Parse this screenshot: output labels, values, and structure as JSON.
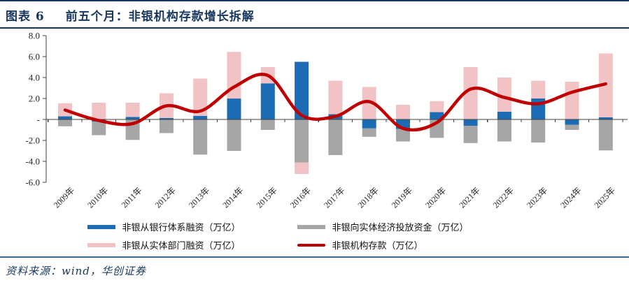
{
  "page": {
    "title_label": "图表 6",
    "title": "前五个月：非银机构存款增长拆解",
    "source": "资料来源：wind，华创证券"
  },
  "colors": {
    "title_navy": "#17375e",
    "rule_blue": "#2a6db5",
    "axis_text": "#262626",
    "axis_line": "#404040"
  },
  "chart_data": {
    "type": "bar",
    "subtype": "stacked-bar-with-smoothed-line",
    "title": "前五个月：非银机构存款增长拆解",
    "categories": [
      "2009年",
      "2010年",
      "2011年",
      "2012年",
      "2013年",
      "2014年",
      "2015年",
      "2016年",
      "2017年",
      "2018年",
      "2019年",
      "2020年",
      "2021年",
      "2022年",
      "2023年",
      "2024年",
      "2025年"
    ],
    "ylim": [
      -6.0,
      8.0
    ],
    "y_tick_values": [
      8,
      6,
      4,
      2,
      0,
      -2,
      -4,
      -6
    ],
    "y_tick_labels": [
      "8.0",
      "6.0",
      "4.0",
      "2.0",
      "-",
      "-2.0",
      "-4.0",
      "-6.0"
    ],
    "grid": false,
    "legend_position": "bottom",
    "stacked": true,
    "series": [
      {
        "name": "非银从银行体系融资（万亿）",
        "type": "bar",
        "color": "#1b6cb4",
        "values": [
          0.3,
          -0.2,
          0.25,
          0.15,
          0.35,
          2.0,
          3.45,
          5.5,
          0.5,
          -0.85,
          -0.9,
          0.7,
          -0.6,
          0.75,
          2.0,
          -0.5,
          0.2
        ]
      },
      {
        "name": "非银向实体经济投放资金（万亿）",
        "type": "bar",
        "color": "#a6a6a6",
        "values": [
          -0.65,
          -1.3,
          -1.95,
          -1.3,
          -3.35,
          -3.0,
          -1.0,
          -4.1,
          -3.4,
          -0.8,
          -1.2,
          -1.75,
          -1.65,
          -2.1,
          -2.2,
          -0.5,
          -2.95
        ]
      },
      {
        "name": "非银从实体部门融资（万亿）",
        "type": "bar",
        "color": "#f2c3c4",
        "values": [
          1.25,
          1.6,
          1.35,
          2.35,
          3.55,
          4.45,
          1.55,
          -1.1,
          3.2,
          3.1,
          1.4,
          1.05,
          5.0,
          3.25,
          1.7,
          3.6,
          6.1
        ]
      },
      {
        "name": "非银机构存款（万亿）",
        "type": "line",
        "smooth": true,
        "color": "#c00000",
        "values": [
          0.9,
          -0.1,
          -0.4,
          1.3,
          0.8,
          3.1,
          4.2,
          0.4,
          0.3,
          1.7,
          -0.85,
          -0.3,
          2.9,
          2.1,
          1.5,
          2.6,
          3.4
        ]
      }
    ]
  }
}
